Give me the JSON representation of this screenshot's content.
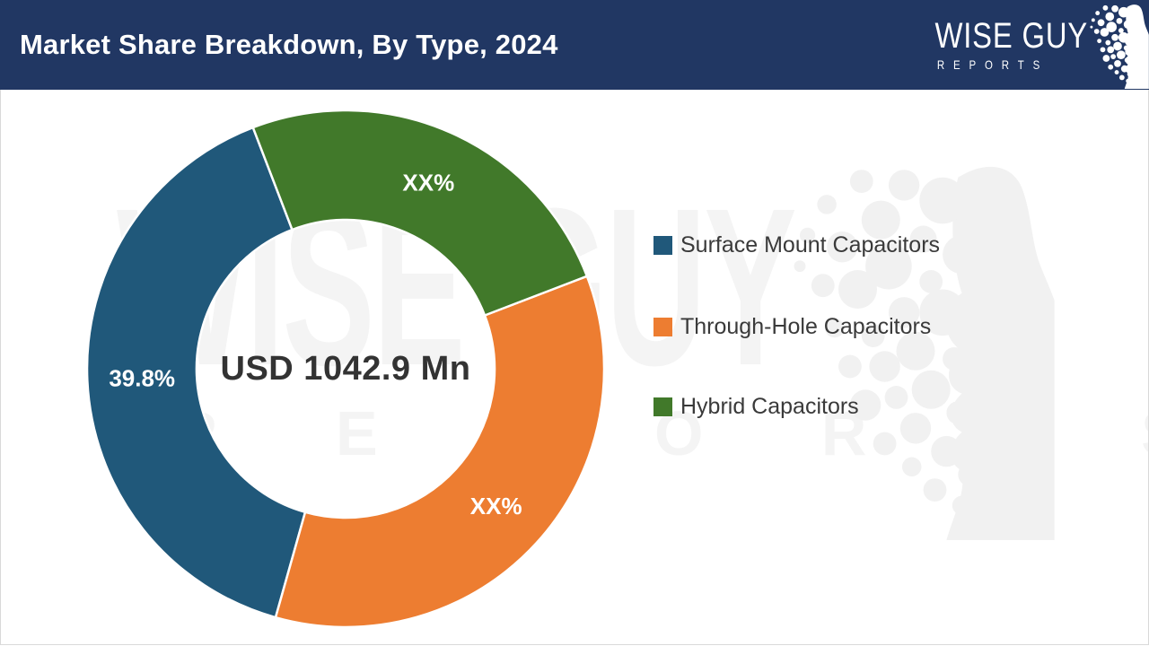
{
  "header": {
    "title": "Market Share Breakdown, By Type, 2024",
    "logo": {
      "name": "WISE GUY",
      "subtitle": "REPORTS"
    }
  },
  "colors": {
    "header_bg": "#213763",
    "blue": "#20587A",
    "orange": "#ED7D31",
    "green": "#41792A",
    "watermark": "#f4f4f4"
  },
  "chart_data": {
    "type": "pie",
    "title": "Market Share Breakdown, By Type, 2024",
    "hole_ratio": 0.58,
    "rotation_deg": 339,
    "direction": "counterclockwise",
    "center_label": "USD 1042.9 Mn",
    "legend_position": "right",
    "segments": [
      {
        "label": "Surface Mount Capacitors",
        "display_value": "39.8%",
        "value_pct": 39.8,
        "color": "#20587A"
      },
      {
        "label": "Through-Hole Capacitors",
        "display_value": "XX%",
        "value_pct": 35.2,
        "color": "#ED7D31"
      },
      {
        "label": "Hybrid Capacitors",
        "display_value": "XX%",
        "value_pct": 25.0,
        "color": "#41792A"
      }
    ]
  },
  "watermark": {
    "line1": "WISE GUY",
    "line2": "R E P O R T S"
  }
}
